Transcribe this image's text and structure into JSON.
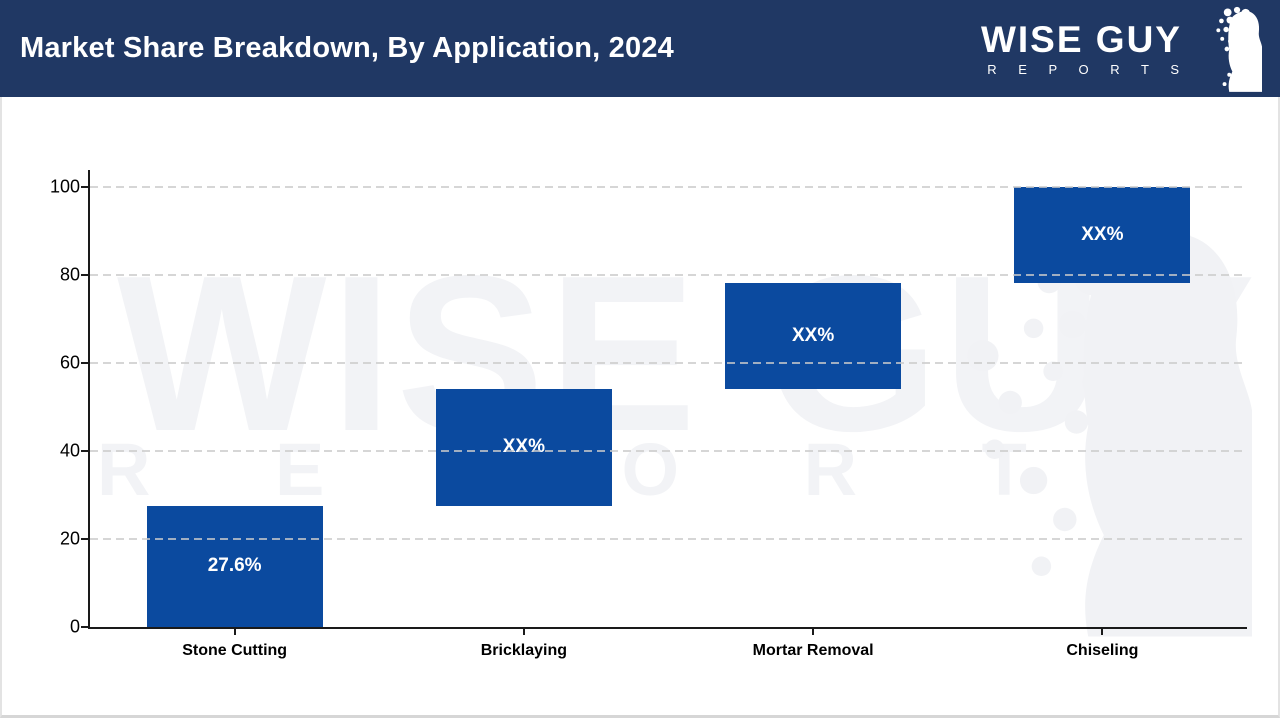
{
  "header": {
    "title": "Market Share Breakdown, By Application, 2024",
    "logo": {
      "brand": "WISE GUY",
      "sub": "R E P O R T S"
    }
  },
  "watermark": {
    "brand": "WISE GUY",
    "sub": "R E P O R T S"
  },
  "chart_data": {
    "type": "bar",
    "subtype": "waterfall",
    "title": "Market Share Breakdown, By Application, 2024",
    "categories": [
      "Stone Cutting",
      "Bricklaying",
      "Mortar Removal",
      "Chiseling"
    ],
    "segments": [
      {
        "category": "Stone Cutting",
        "start": 0,
        "end": 27.6,
        "label": "27.6%"
      },
      {
        "category": "Bricklaying",
        "start": 27.6,
        "end": 54.0,
        "label": "XX%"
      },
      {
        "category": "Mortar Removal",
        "start": 54.0,
        "end": 78.2,
        "label": "XX%"
      },
      {
        "category": "Chiseling",
        "start": 78.2,
        "end": 100,
        "label": "XX%"
      }
    ],
    "ylim": [
      0,
      100
    ],
    "yticks": [
      0,
      20,
      40,
      60,
      80,
      100
    ],
    "grid": "horizontal dashed",
    "legend": "none",
    "bar_color": "#0b4a9f",
    "bar_label_color": "#ffffff"
  },
  "colors": {
    "header_bg": "#203864",
    "bar": "#0b4a9f",
    "watermark": "#f2f3f6",
    "axis": "#1a1a1a"
  }
}
